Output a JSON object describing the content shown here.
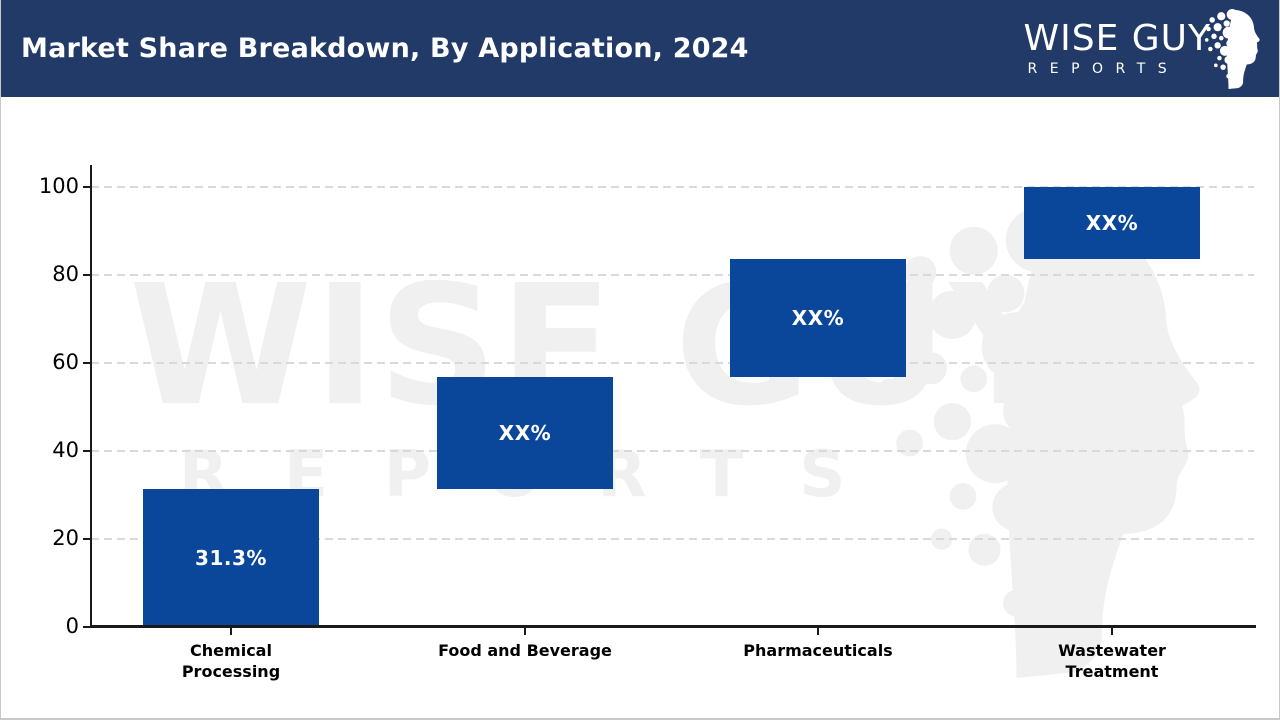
{
  "header": {
    "title": "Market Share Breakdown, By Application, 2024",
    "logo": {
      "brand_line1": "WISE GUY",
      "brand_line2": "REPORTS"
    }
  },
  "watermark": {
    "line1": "WISE GUY",
    "line2": "REPORTS"
  },
  "chart_data": {
    "type": "bar",
    "subtype": "waterfall",
    "title": "Market Share Breakdown, By Application, 2024",
    "categories": [
      "Chemical\nProcessing",
      "Food and Beverage",
      "Pharmaceuticals",
      "Wastewater\nTreatment"
    ],
    "series": [
      {
        "name": "Market Share (%)",
        "segments": [
          {
            "category": "Chemical Processing",
            "start": 0,
            "end": 31.3,
            "label": "31.3%"
          },
          {
            "category": "Food and Beverage",
            "start": 31.3,
            "end": 56.8,
            "label": "XX%"
          },
          {
            "category": "Pharmaceuticals",
            "start": 56.8,
            "end": 83.7,
            "label": "XX%"
          },
          {
            "category": "Wastewater Treatment",
            "start": 83.7,
            "end": 100,
            "label": "XX%"
          }
        ]
      }
    ],
    "xlabel": "",
    "ylabel": "",
    "yticks": [
      0,
      20,
      40,
      60,
      80,
      100
    ],
    "ylim": [
      0,
      105
    ],
    "grid": "horizontal-dashed",
    "legend": "none",
    "colors": {
      "bar": "#0a479b",
      "bar_label": "#ffffff",
      "axis": "#1a1a1a",
      "gridline": "#d9d9d9",
      "header_bg": "#223a67",
      "watermark": "#f0f0f0"
    }
  }
}
